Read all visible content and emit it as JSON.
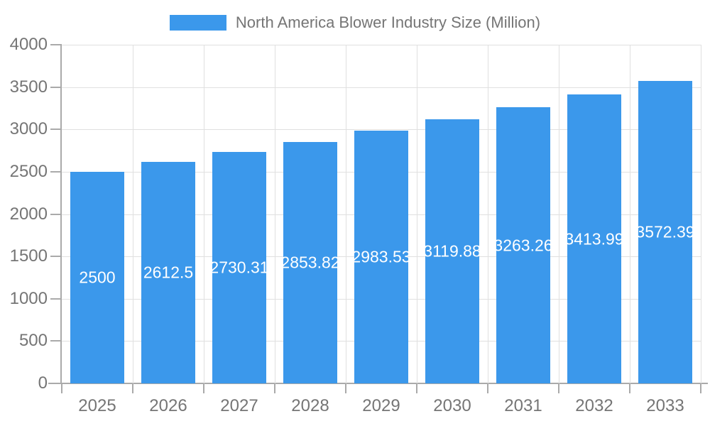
{
  "legend": {
    "label": "North America Blower Industry Size (Million)"
  },
  "chart_data": {
    "type": "bar",
    "title": "North America Blower Industry Size (Million)",
    "categories": [
      "2025",
      "2026",
      "2027",
      "2028",
      "2029",
      "2030",
      "2031",
      "2032",
      "2033"
    ],
    "values": [
      2500,
      2612.5,
      2730.31,
      2853.82,
      2983.53,
      3119.88,
      3263.26,
      3413.99,
      3572.39
    ],
    "value_labels": [
      "2500",
      "2612.5",
      "2730.31",
      "2853.82",
      "2983.53",
      "3119.88",
      "3263.26",
      "3413.99",
      "3572.39"
    ],
    "xlabel": "",
    "ylabel": "",
    "ylim": [
      0,
      4000
    ],
    "yticks": [
      0,
      500,
      1000,
      1500,
      2000,
      2500,
      3000,
      3500,
      4000
    ],
    "grid": true,
    "legend_position": "top",
    "value_label_position": "inside-middle",
    "colors": {
      "bar": "#3B98EB",
      "grid": "#e0e0e0",
      "axis": "#aaaaaa",
      "label": "#757575",
      "value_label": "#ffffff",
      "background": "#ffffff"
    }
  }
}
